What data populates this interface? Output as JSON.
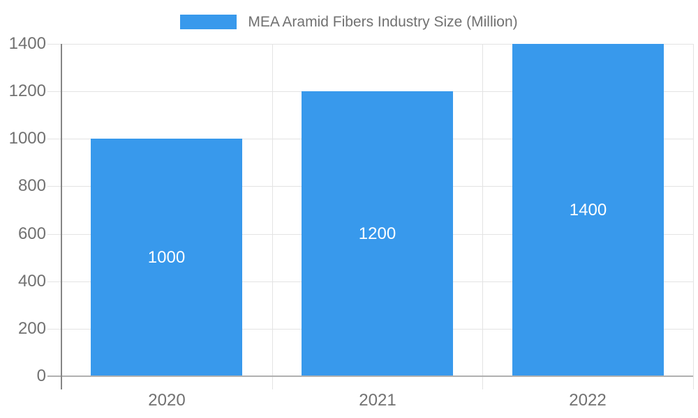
{
  "legend": {
    "label": "MEA Aramid Fibers Industry Size (Million)"
  },
  "colors": {
    "bar": "#3899EC",
    "text": "#717171",
    "bar_label": "#FFFFFF",
    "gridline": "#E3E3E3",
    "baseline": "#B0B0B0",
    "axis_line": "#858585",
    "background": "#FFFFFF"
  },
  "chart_data": {
    "type": "bar",
    "title": "MEA Aramid Fibers Industry Size (Million)",
    "categories": [
      "2020",
      "2021",
      "2022"
    ],
    "values": [
      1000,
      1200,
      1400
    ],
    "data_labels": [
      "1000",
      "1200",
      "1400"
    ],
    "series": [
      {
        "name": "MEA Aramid Fibers Industry Size (Million)",
        "color": "#3899EC",
        "values": [
          1000,
          1200,
          1400
        ]
      }
    ],
    "xlabel": "",
    "ylabel": "",
    "ylim": [
      0,
      1400
    ],
    "yticks": [
      0,
      200,
      400,
      600,
      800,
      1000,
      1200,
      1400
    ],
    "grid": true,
    "legend_position": "top-center"
  }
}
